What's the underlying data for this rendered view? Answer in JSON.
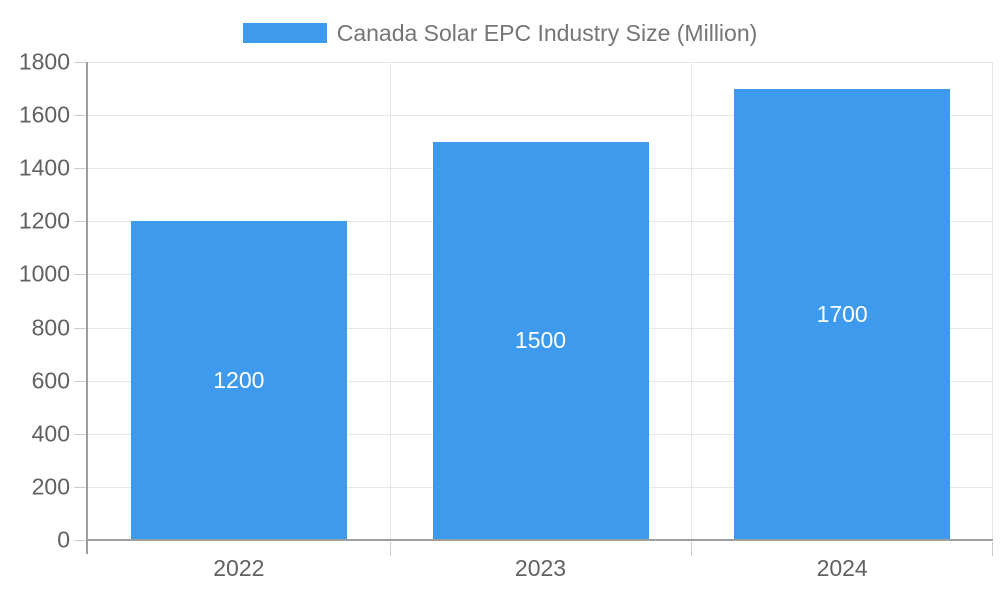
{
  "legend": {
    "label": "Canada Solar EPC Industry Size (Million)"
  },
  "chart_data": {
    "type": "bar",
    "title": "Canada Solar EPC Industry Size (Million)",
    "categories": [
      "2022",
      "2023",
      "2024"
    ],
    "values": [
      1200,
      1500,
      1700
    ],
    "bar_value_labels": [
      "1200",
      "1500",
      "1700"
    ],
    "xlabel": "",
    "ylabel": "",
    "ylim": [
      0,
      1800
    ],
    "yticks": [
      0,
      200,
      400,
      600,
      800,
      1000,
      1200,
      1400,
      1600,
      1800
    ],
    "grid": true,
    "legend_position": "top-center",
    "colors": {
      "bar": "#3d9aec",
      "bar_label": "#ffffff",
      "grid": "#e6e6e6",
      "tick": "#cccccc",
      "axis": "#9e9e9e",
      "tick_label": "#616161",
      "legend_label": "#757575",
      "background": "#ffffff"
    }
  }
}
